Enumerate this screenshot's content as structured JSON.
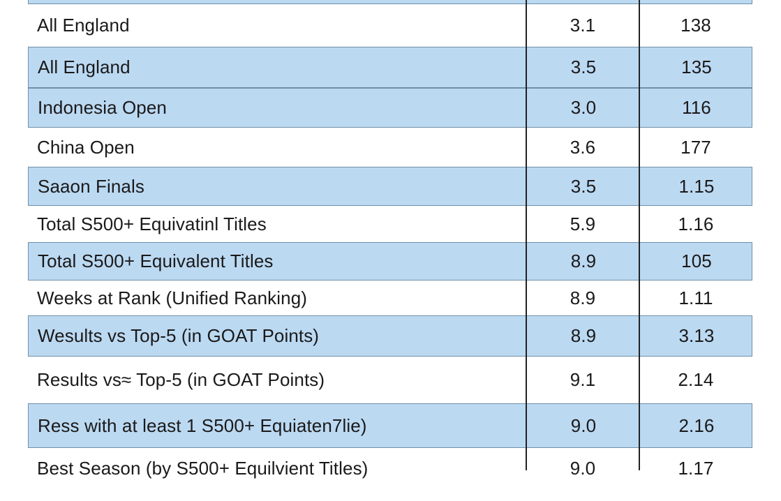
{
  "colors": {
    "row_shade": "#bcd9f2",
    "row_border": "#6f8fa8",
    "divider": "#222222"
  },
  "rows": [
    {
      "name": "",
      "v1": "",
      "v2": "",
      "shaded": true
    },
    {
      "name": "All England",
      "v1": "3.1",
      "v2": "138",
      "shaded": false
    },
    {
      "name": "All England",
      "v1": "3.5",
      "v2": "135",
      "shaded": true
    },
    {
      "name": "Indonesia Open",
      "v1": "3.0",
      "v2": "116",
      "shaded": true
    },
    {
      "name": "China Open",
      "v1": "3.6",
      "v2": "177",
      "shaded": false
    },
    {
      "name": "Saaon Finals",
      "v1": "3.5",
      "v2": "1.15",
      "shaded": true
    },
    {
      "name": "Total S500+ Equivatinl Titles",
      "v1": "5.9",
      "v2": "1.16",
      "shaded": false
    },
    {
      "name": "Total S500+ Equivalent Titles",
      "v1": "8.9",
      "v2": "105",
      "shaded": true
    },
    {
      "name": "Weeks at Rank (Unified Ranking)",
      "v1": "8.9",
      "v2": "1.11",
      "shaded": false
    },
    {
      "name": "Wesults vs Top-5 (in GOAT Points)",
      "v1": "8.9",
      "v2": "3.13",
      "shaded": true
    },
    {
      "name": "Results vs≈ Top-5 (in GOAT Points)",
      "v1": "9.1",
      "v2": "2.14",
      "shaded": false
    },
    {
      "name": "Ress with at least 1 S500+ Equiaten7lie)",
      "v1": "9.0",
      "v2": "2.16",
      "shaded": true
    },
    {
      "name": "Best Season (by S500+ Equilvient Titles)",
      "v1": "9.0",
      "v2": "1.17",
      "shaded": false
    }
  ]
}
